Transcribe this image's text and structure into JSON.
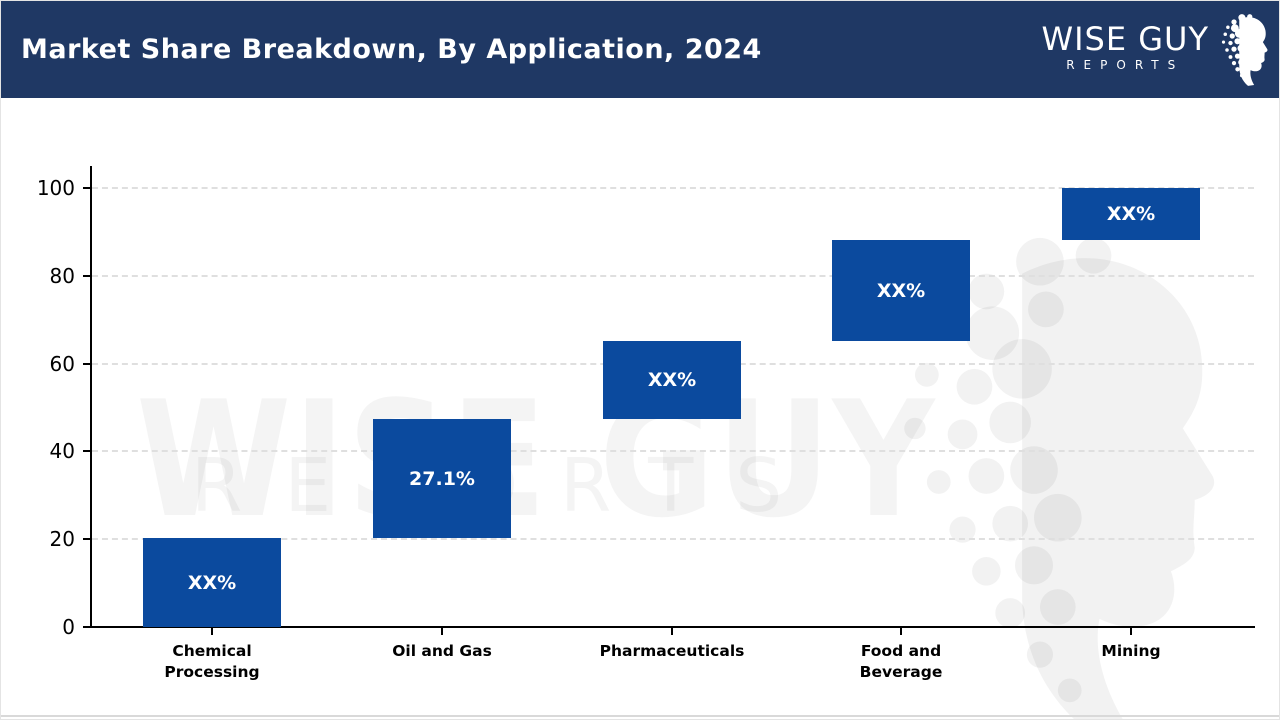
{
  "header": {
    "title": "Market Share Breakdown, By Application, 2024",
    "logo": {
      "line1": "WISE GUY",
      "line2": "REPORTS"
    }
  },
  "watermark": {
    "line1": "WISE GUY",
    "line2": "REPORTS"
  },
  "chart_data": {
    "type": "bar",
    "subtype": "floating-waterfall",
    "title": "Market Share Breakdown, By Application, 2024",
    "categories": [
      "Chemical Processing",
      "Oil and Gas",
      "Pharmaceuticals",
      "Food and Beverage",
      "Mining"
    ],
    "segments": [
      {
        "category": "Chemical Processing",
        "start": 0,
        "end": 20.3,
        "label": "XX%"
      },
      {
        "category": "Oil and Gas",
        "start": 20.3,
        "end": 47.4,
        "label": "27.1%"
      },
      {
        "category": "Pharmaceuticals",
        "start": 47.4,
        "end": 65.2,
        "label": "XX%"
      },
      {
        "category": "Food and Beverage",
        "start": 65.2,
        "end": 88.1,
        "label": "XX%"
      },
      {
        "category": "Mining",
        "start": 88.1,
        "end": 100,
        "label": "XX%"
      }
    ],
    "xlabel": "",
    "ylabel": "",
    "ylim": [
      0,
      100
    ],
    "yticks": [
      0,
      20,
      40,
      60,
      80,
      100
    ],
    "grid": "horizontal-dashed",
    "legend": "none"
  },
  "colors": {
    "header_bg": "#1f3864",
    "bar": "#0b4a9e",
    "axis": "#000000",
    "gridline": "#dfdfdf",
    "bar_label": "#ffffff",
    "category_label": "#000000"
  }
}
